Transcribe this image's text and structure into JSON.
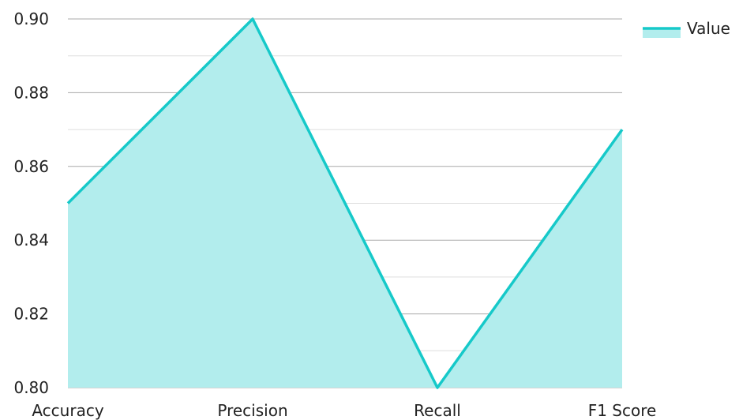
{
  "chart_data": {
    "type": "area",
    "categories": [
      "Accuracy",
      "Precision",
      "Recall",
      "F1 Score"
    ],
    "series": [
      {
        "name": "Value",
        "values": [
          0.85,
          0.9,
          0.8,
          0.87
        ]
      }
    ],
    "ylim": [
      0.8,
      0.9
    ],
    "yticks": [
      "0.80",
      "0.82",
      "0.84",
      "0.86",
      "0.88",
      "0.90"
    ],
    "grid": true,
    "legend": "top-right",
    "colors": {
      "line": "#16c9c9",
      "fill": "#b2eded"
    }
  }
}
